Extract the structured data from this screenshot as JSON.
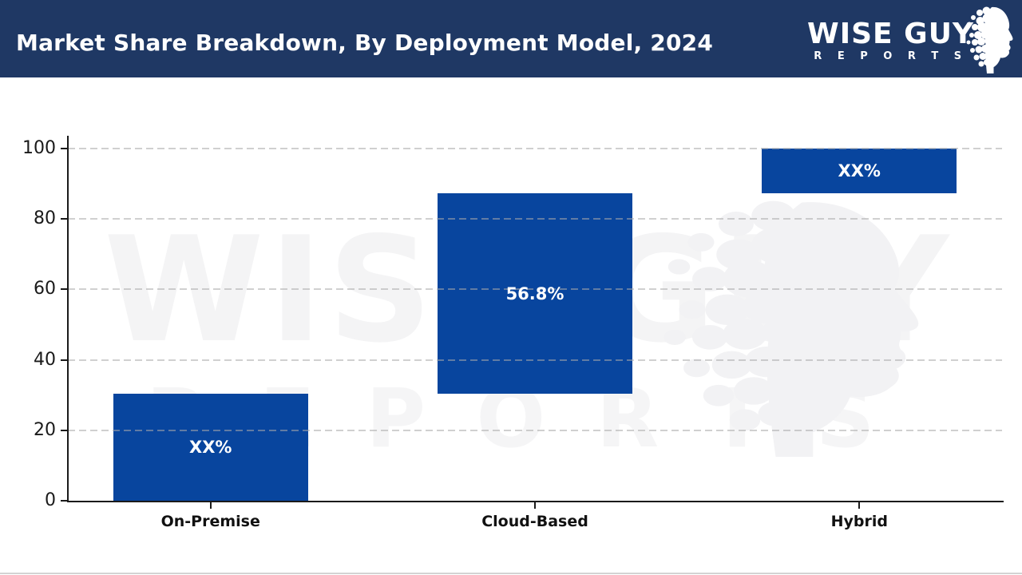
{
  "header": {
    "title": "Market Share Breakdown, By Deployment Model, 2024",
    "logo": {
      "brand": "WISE GUY",
      "sub": "R E P O R T S",
      "head_icon": "dotted-head-profile-icon"
    }
  },
  "watermark": {
    "line1": "WISE GUY",
    "line2": "R E P O R T S",
    "head_icon": "dotted-head-profile-watermark"
  },
  "colors": {
    "header_bg": "#1f3864",
    "bar": "#08459e",
    "axis": "#1a1a1a",
    "grid_dash": "#d9d9d9",
    "bar_label_text": "#ffffff",
    "watermark": "#f2f2f4",
    "page_bg": "#ffffff"
  },
  "chart_data": {
    "type": "bar",
    "variant": "floating stacked segments (waterfall-style market share)",
    "title": "Market Share Breakdown, By Deployment Model, 2024",
    "categories": [
      "On-Premise",
      "Cloud-Based",
      "Hybrid"
    ],
    "series": [
      {
        "name": "On-Premise",
        "start": 0,
        "end": 30.4,
        "label": "XX%"
      },
      {
        "name": "Cloud-Based",
        "start": 30.4,
        "end": 87.2,
        "label": "56.8%"
      },
      {
        "name": "Hybrid",
        "start": 87.2,
        "end": 100,
        "label": "XX%"
      }
    ],
    "xlabel": "",
    "ylabel": "",
    "ylim": [
      0,
      103.6
    ],
    "yticks": [
      0,
      20,
      40,
      60,
      80,
      100
    ],
    "grid": "horizontal dashed lines drawn over bars",
    "legend": "none"
  }
}
